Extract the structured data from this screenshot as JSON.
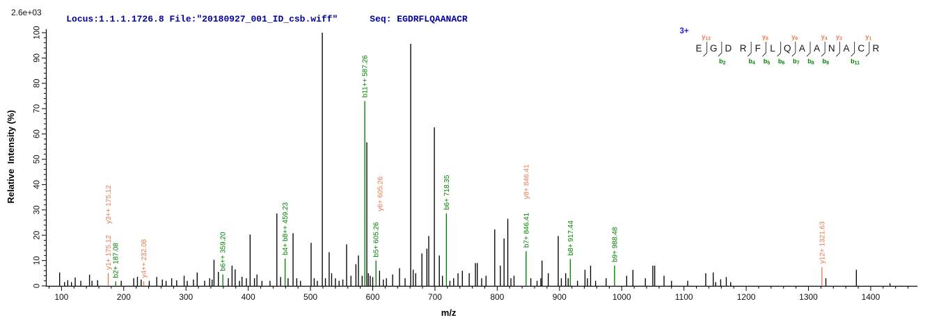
{
  "header": {
    "locus_file": "Locus:1.1.1.1726.8 File:\"20180927_001_ID_csb.wiff\"",
    "seq_text": "Seq: EGDRFLQAANACR"
  },
  "colors": {
    "header_text": "#0000A0",
    "charge_blue": "#2222CC",
    "b_ion_green": "#007F00",
    "y_ion_orange": "#E97B52",
    "peak_black": "#000000",
    "axis": "#000000",
    "residue_text": "#141414",
    "mark": "#3a3a3a"
  },
  "sequence_map": {
    "charge": "3+",
    "residues": [
      "E",
      "G",
      "D",
      "R",
      "F",
      "L",
      "Q",
      "A",
      "A",
      "N",
      "A",
      "C",
      "R"
    ],
    "cleavages": [
      {
        "after": 1,
        "y_ion": "y12"
      },
      {
        "after": 2,
        "b_ion": "b2"
      },
      {
        "after": 4,
        "b_ion": "b4"
      },
      {
        "after": 5,
        "y_ion": "y8",
        "b_ion": "b5"
      },
      {
        "after": 6,
        "b_ion": "b6"
      },
      {
        "after": 7,
        "y_ion": "y6",
        "b_ion": "b7"
      },
      {
        "after": 8,
        "b_ion": "b8"
      },
      {
        "after": 9,
        "y_ion": "y4",
        "b_ion": "b9"
      },
      {
        "after": 10,
        "y_ion": "y3"
      },
      {
        "after": 11,
        "b_ion": "b11"
      },
      {
        "after": 12,
        "y_ion": "y1"
      }
    ]
  },
  "chart_data": {
    "type": "bar",
    "subtype": "mass-spectrum-stick-plot",
    "title": "",
    "xlabel": "m/z",
    "ylabel": "Relative  Intensity (%)",
    "y_axis_scale_note": "2.6e+03",
    "xlim": [
      75,
      1475
    ],
    "ylim": [
      0,
      100
    ],
    "x_ticks": [
      100,
      200,
      300,
      400,
      500,
      600,
      700,
      800,
      900,
      1000,
      1100,
      1200,
      1300,
      1400
    ],
    "x_tick_minor_step": 20,
    "y_ticks": [
      0,
      10,
      20,
      30,
      40,
      50,
      60,
      70,
      80,
      90,
      100
    ],
    "y_tick_minor_step": 2,
    "grid": false,
    "peaks_format": [
      "mz",
      "relative_intensity_pct",
      "ion_series(b|y|empty=unassigned)"
    ],
    "peaks": [
      [
        97,
        5.3,
        ""
      ],
      [
        105,
        1.5,
        ""
      ],
      [
        110,
        2.2,
        ""
      ],
      [
        116,
        1.5,
        ""
      ],
      [
        122,
        3.3,
        ""
      ],
      [
        131,
        2,
        ""
      ],
      [
        145,
        4.4,
        ""
      ],
      [
        149,
        2,
        ""
      ],
      [
        158,
        2.2,
        ""
      ],
      [
        175.12,
        5,
        "y"
      ],
      [
        187.08,
        1.8,
        "b"
      ],
      [
        196,
        2,
        ""
      ],
      [
        216,
        3,
        ""
      ],
      [
        222,
        3.6,
        ""
      ],
      [
        228,
        2.5,
        ""
      ],
      [
        232.08,
        1.8,
        "y"
      ],
      [
        241,
        2,
        ""
      ],
      [
        253,
        3.5,
        ""
      ],
      [
        262,
        2.5,
        ""
      ],
      [
        268,
        2,
        ""
      ],
      [
        277,
        3,
        ""
      ],
      [
        285,
        2.2,
        ""
      ],
      [
        297,
        4,
        ""
      ],
      [
        302,
        2,
        ""
      ],
      [
        312,
        2.5,
        ""
      ],
      [
        318,
        5.3,
        ""
      ],
      [
        330,
        2,
        ""
      ],
      [
        338,
        3,
        ""
      ],
      [
        342,
        2.5,
        ""
      ],
      [
        345,
        10.3,
        ""
      ],
      [
        352,
        5.5,
        ""
      ],
      [
        359.2,
        4.5,
        "b"
      ],
      [
        368,
        3,
        ""
      ],
      [
        374,
        8,
        ""
      ],
      [
        379,
        6.5,
        ""
      ],
      [
        386,
        2,
        ""
      ],
      [
        390,
        3.6,
        ""
      ],
      [
        397,
        3,
        ""
      ],
      [
        403,
        20.3,
        ""
      ],
      [
        410,
        3,
        ""
      ],
      [
        414,
        4.5,
        ""
      ],
      [
        422,
        2,
        ""
      ],
      [
        435,
        2,
        ""
      ],
      [
        446,
        28.6,
        ""
      ],
      [
        452,
        3.5,
        ""
      ],
      [
        459.23,
        10.8,
        "b"
      ],
      [
        464,
        3,
        ""
      ],
      [
        472,
        20.8,
        ""
      ],
      [
        478,
        3,
        ""
      ],
      [
        484,
        2,
        ""
      ],
      [
        501,
        17,
        ""
      ],
      [
        506,
        3,
        ""
      ],
      [
        511,
        2,
        ""
      ],
      [
        519,
        100,
        ""
      ],
      [
        524,
        3,
        ""
      ],
      [
        530,
        13.3,
        ""
      ],
      [
        534,
        5,
        ""
      ],
      [
        540,
        3,
        ""
      ],
      [
        546,
        2,
        ""
      ],
      [
        552,
        2.5,
        ""
      ],
      [
        558,
        16.4,
        ""
      ],
      [
        565,
        4,
        ""
      ],
      [
        573,
        8.6,
        ""
      ],
      [
        577,
        12,
        ""
      ],
      [
        583,
        4,
        ""
      ],
      [
        587.26,
        73,
        "b"
      ],
      [
        590.5,
        56.7,
        ""
      ],
      [
        593,
        5,
        ""
      ],
      [
        596,
        4,
        ""
      ],
      [
        600,
        3.5,
        ""
      ],
      [
        605.26,
        10,
        "b"
      ],
      [
        611,
        6,
        ""
      ],
      [
        617,
        2.5,
        ""
      ],
      [
        622,
        3,
        ""
      ],
      [
        632,
        4.5,
        ""
      ],
      [
        643,
        7,
        ""
      ],
      [
        652,
        3,
        ""
      ],
      [
        661,
        95.6,
        ""
      ],
      [
        665,
        6.4,
        ""
      ],
      [
        669,
        5,
        ""
      ],
      [
        679,
        12.8,
        ""
      ],
      [
        687,
        14.7,
        ""
      ],
      [
        690,
        19.7,
        ""
      ],
      [
        699,
        62.6,
        ""
      ],
      [
        707,
        12,
        ""
      ],
      [
        712,
        4,
        ""
      ],
      [
        718.35,
        28.6,
        "b"
      ],
      [
        724,
        2,
        ""
      ],
      [
        730,
        3,
        ""
      ],
      [
        737,
        5,
        ""
      ],
      [
        744,
        6,
        ""
      ],
      [
        755,
        5,
        ""
      ],
      [
        765,
        9,
        ""
      ],
      [
        768,
        9,
        ""
      ],
      [
        775,
        3,
        ""
      ],
      [
        782,
        4,
        ""
      ],
      [
        796,
        22.3,
        ""
      ],
      [
        805,
        8,
        ""
      ],
      [
        811,
        18.7,
        ""
      ],
      [
        817,
        26.5,
        ""
      ],
      [
        822,
        3,
        ""
      ],
      [
        827,
        4,
        ""
      ],
      [
        846.41,
        13.7,
        "b"
      ],
      [
        854,
        3,
        ""
      ],
      [
        864,
        2,
        ""
      ],
      [
        870,
        3,
        ""
      ],
      [
        872,
        10,
        ""
      ],
      [
        882,
        5,
        ""
      ],
      [
        898,
        19.7,
        ""
      ],
      [
        903,
        3,
        ""
      ],
      [
        910,
        5,
        ""
      ],
      [
        914,
        3,
        ""
      ],
      [
        917.44,
        10.6,
        "b"
      ],
      [
        929,
        2,
        ""
      ],
      [
        941,
        6.4,
        ""
      ],
      [
        945,
        3,
        ""
      ],
      [
        950,
        8,
        ""
      ],
      [
        958,
        2,
        ""
      ],
      [
        975,
        3,
        ""
      ],
      [
        988.48,
        8,
        "b"
      ],
      [
        1008,
        4,
        ""
      ],
      [
        1018,
        6.3,
        ""
      ],
      [
        1038,
        3,
        ""
      ],
      [
        1050,
        8,
        ""
      ],
      [
        1053,
        8,
        ""
      ],
      [
        1068,
        4,
        ""
      ],
      [
        1080,
        2,
        ""
      ],
      [
        1106,
        2,
        ""
      ],
      [
        1135,
        5,
        ""
      ],
      [
        1147,
        5.3,
        ""
      ],
      [
        1151,
        1.5,
        ""
      ],
      [
        1159,
        2.6,
        ""
      ],
      [
        1168,
        3.5,
        ""
      ],
      [
        1175,
        1.5,
        ""
      ],
      [
        1321.63,
        7.4,
        "y"
      ],
      [
        1328,
        3,
        ""
      ],
      [
        1377,
        6.4,
        ""
      ],
      [
        1431,
        1,
        ""
      ]
    ],
    "annotations": [
      {
        "mz": 175.12,
        "text": "y1+ 175.12",
        "ion": "y"
      },
      {
        "mz": 175.12,
        "text": "y3++ 175.12",
        "ion": "y",
        "dy": 66
      },
      {
        "mz": 187.08,
        "text": "b2+ 187.08",
        "ion": "b"
      },
      {
        "mz": 232.08,
        "text": "y4++ 232.08",
        "ion": "y"
      },
      {
        "mz": 359.2,
        "text": "b6++ 359.20",
        "ion": "b"
      },
      {
        "mz": 459.23,
        "text": "b4+ b8++ 459.23",
        "ion": "b"
      },
      {
        "mz": 587.26,
        "text": "b11++ 587.26",
        "ion": "b"
      },
      {
        "mz": 605.26,
        "text": "b5+ 605.26",
        "ion": "b"
      },
      {
        "mz": 605.26,
        "text": "y6+ 605.26",
        "ion": "y",
        "dx": 6,
        "dy": 66
      },
      {
        "mz": 718.35,
        "text": "b6+ 718.35",
        "ion": "b"
      },
      {
        "mz": 846.41,
        "text": "b7+ 846.41",
        "ion": "b"
      },
      {
        "mz": 846.41,
        "text": "y8+ 846.41",
        "ion": "y",
        "dy": 70
      },
      {
        "mz": 917.44,
        "text": "b8+ 917.44",
        "ion": "b"
      },
      {
        "mz": 988.48,
        "text": "b9+ 988.48",
        "ion": "b"
      },
      {
        "mz": 1321.63,
        "text": "y12+ 1321.63",
        "ion": "y"
      }
    ]
  }
}
